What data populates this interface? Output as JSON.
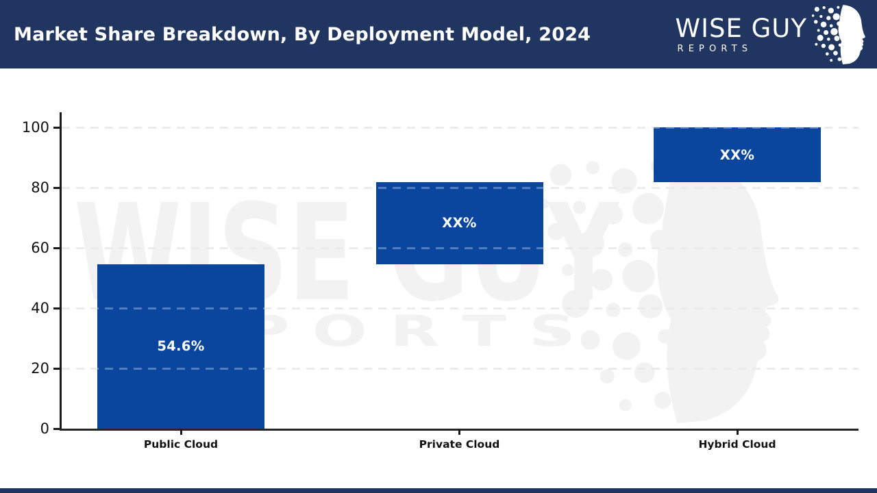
{
  "header": {
    "title": "Market Share Breakdown, By Deployment Model, 2024",
    "logo": {
      "line1": "WISE GUY",
      "line2": "REPORTS"
    }
  },
  "watermark": {
    "line1": "WISE GUY",
    "line2": "R E P O R T S"
  },
  "chart_data": {
    "type": "bar",
    "subtype": "waterfall",
    "title": "Market Share Breakdown, By Deployment Model, 2024",
    "categories": [
      "Public Cloud",
      "Private Cloud",
      "Hybrid Cloud"
    ],
    "segments": [
      {
        "category": "Public Cloud",
        "start": 0,
        "end": 54.6,
        "label": "54.6%"
      },
      {
        "category": "Private Cloud",
        "start": 54.6,
        "end": 81.8,
        "label": "XX%"
      },
      {
        "category": "Hybrid Cloud",
        "start": 81.8,
        "end": 100,
        "label": "XX%"
      }
    ],
    "ylim": [
      0,
      100
    ],
    "yticks": [
      0,
      20,
      40,
      60,
      80,
      100
    ],
    "grid": true,
    "grid_style": "dashed",
    "legend": false,
    "bar_color": "#0a469e",
    "bar_label_color": "#ffffff",
    "axis_color": "#1a1a1a",
    "grid_color": "#e3e3e3",
    "tick_label_color": "#111111"
  },
  "colors": {
    "header_bg": "#20355f",
    "footer_bg": "#20355f",
    "watermark": "#f2f2f2",
    "canvas_bg": "#ffffff"
  }
}
